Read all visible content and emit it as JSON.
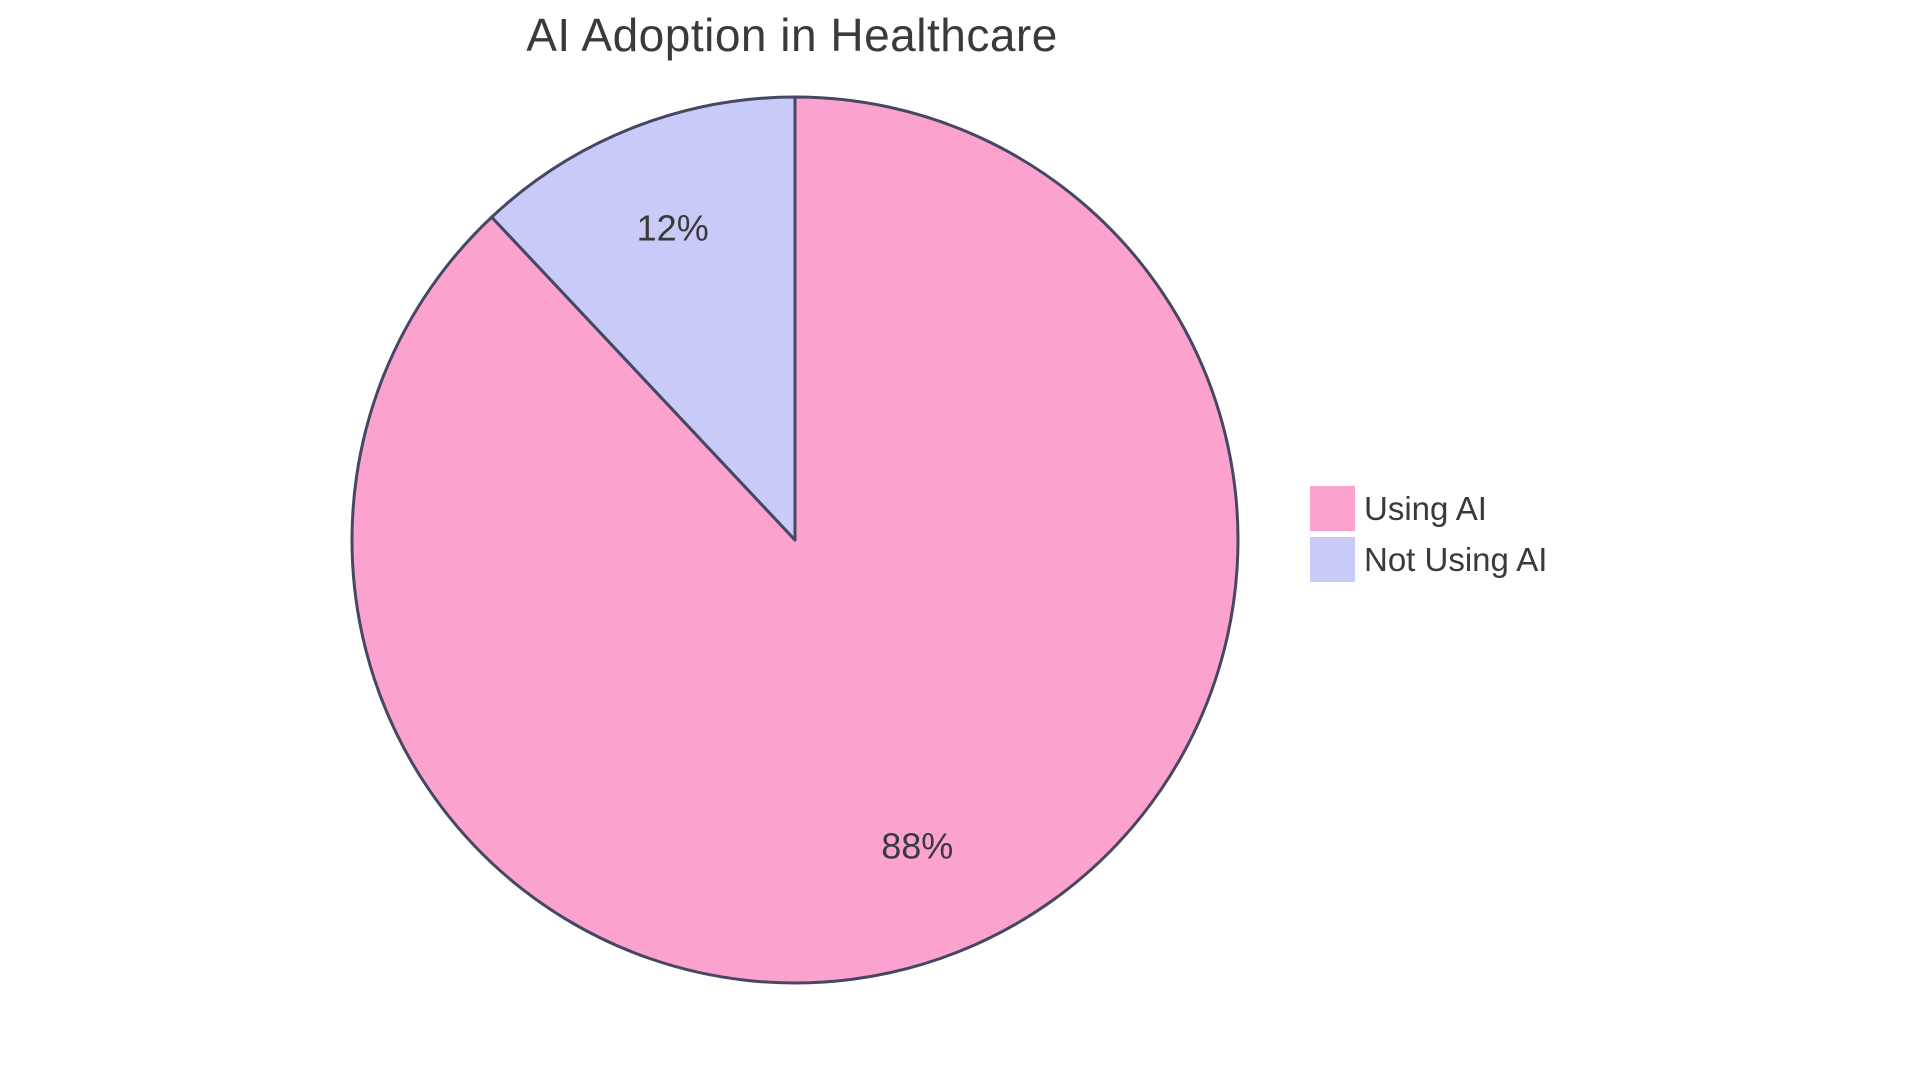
{
  "page": {
    "background_color": "#ffffff"
  },
  "chart_data": {
    "type": "pie",
    "title": "AI Adoption in Healthcare",
    "series": [
      {
        "label": "Using AI",
        "value": 88,
        "percent_label": "88%",
        "color": "#FBA3CE"
      },
      {
        "label": "Not Using AI",
        "value": 12,
        "percent_label": "12%",
        "color": "#C8CAF8"
      }
    ],
    "start_angle_deg": 0,
    "direction": "clockwise",
    "slice_stroke_color": "#454763",
    "slice_stroke_width": 3,
    "label_text_color": "#3a3a3a",
    "title_text_color": "#3a3a3a",
    "legend": {
      "position": "right",
      "entries": [
        "Using AI",
        "Not Using AI"
      ]
    }
  }
}
